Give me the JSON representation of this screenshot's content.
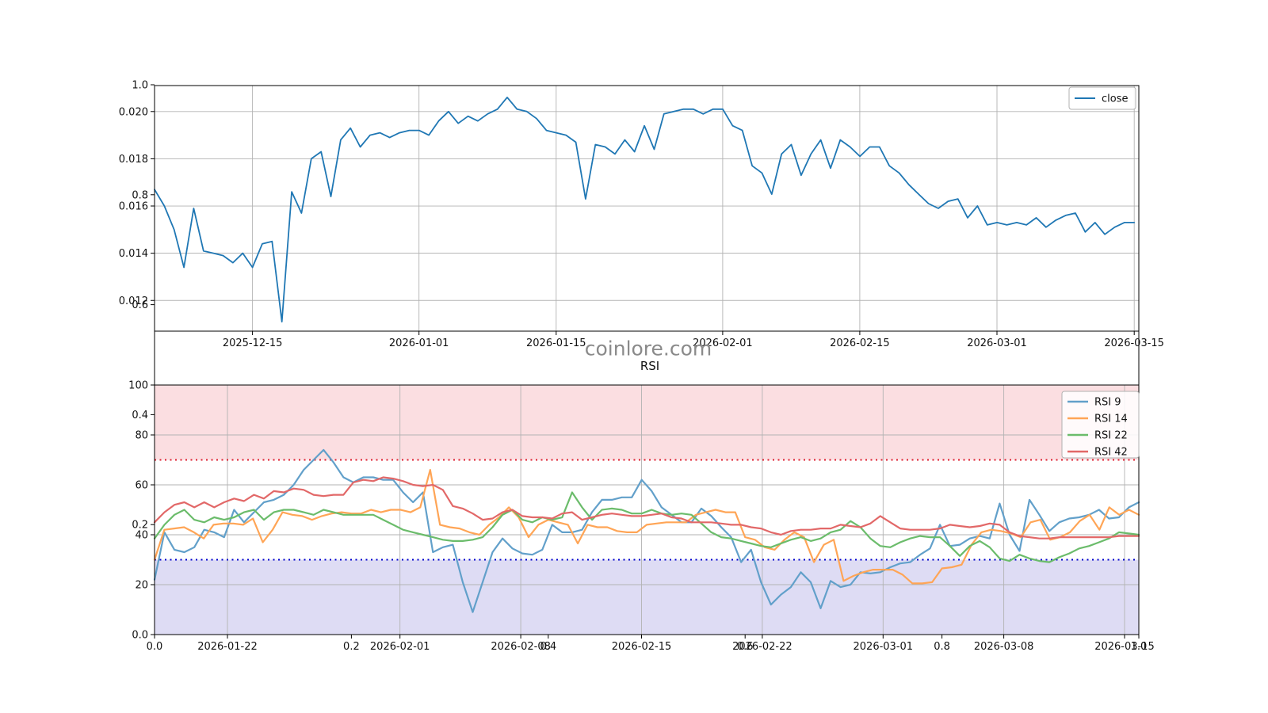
{
  "watermark": "coinlore.com",
  "price_chart": {
    "legend": [
      "close"
    ],
    "y_tick_labels": [
      "0.020",
      "0.018",
      "0.016",
      "0.014",
      "0.012"
    ],
    "y_tick_values": [
      0.02,
      0.018,
      0.016,
      0.014,
      0.012
    ],
    "x_tick_labels": [
      "2025-12-15",
      "2026-01-01",
      "2026-01-15",
      "2026-02-01",
      "2026-02-15",
      "2026-03-01",
      "2026-03-15"
    ]
  },
  "rsi_chart": {
    "title": "RSI",
    "legend": [
      "RSI 9",
      "RSI 14",
      "RSI 22",
      "RSI 42"
    ],
    "y_tick_labels": [
      "100",
      "80",
      "60",
      "40",
      "20"
    ],
    "y_tick_values": [
      100,
      80,
      60,
      40,
      20
    ],
    "x_tick_labels": [
      "2026-01-22",
      "2026-02-01",
      "2026-02-08",
      "2026-02-15",
      "2026-02-22",
      "2026-03-01",
      "2026-03-08",
      "2026-03-15"
    ],
    "overbought_level": 70,
    "oversold_level": 30
  },
  "overlay_axis": {
    "x_tick_labels": [
      "0.0",
      "0.2",
      "0.4",
      "0.6",
      "0.8",
      "1.0"
    ],
    "y_tick_labels": [
      "1.0",
      "0.8",
      "0.6",
      "0.4",
      "0.2",
      "0.0"
    ]
  },
  "colors": {
    "close": "#1f77b4",
    "rsi9": "#62a0ca",
    "rsi14": "#ffa556",
    "rsi22": "#6bbc6b",
    "rsi42": "#e26868",
    "overbought_band": "#fbdee1",
    "oversold_band": "#dedcf4",
    "overbought_line": "#dc1c2c",
    "oversold_line": "#0000cd",
    "grid": "#b3b3b3",
    "watermark_gray": "#8a8a8a"
  },
  "chart_data": [
    {
      "type": "line",
      "title": "",
      "x_start": "2025-12-05",
      "x_end": "2026-03-15",
      "x_freq": "daily",
      "ylim": [
        0.0107,
        0.0211
      ],
      "grid": true,
      "legend_position": "upper right",
      "series": [
        {
          "name": "close",
          "values": [
            0.0167,
            0.016,
            0.015,
            0.0134,
            0.0159,
            0.0141,
            0.014,
            0.0139,
            0.0136,
            0.014,
            0.0134,
            0.0144,
            0.0145,
            0.0111,
            0.0166,
            0.0157,
            0.018,
            0.0183,
            0.0164,
            0.0188,
            0.0193,
            0.0185,
            0.019,
            0.0191,
            0.0189,
            0.0191,
            0.0192,
            0.0192,
            0.019,
            0.0196,
            0.02,
            0.0195,
            0.0198,
            0.0196,
            0.0199,
            0.0201,
            0.0206,
            0.0201,
            0.02,
            0.0197,
            0.0192,
            0.0191,
            0.019,
            0.0187,
            0.0163,
            0.0186,
            0.0185,
            0.0182,
            0.0188,
            0.0183,
            0.0194,
            0.0184,
            0.0199,
            0.02,
            0.0201,
            0.0201,
            0.0199,
            0.0201,
            0.0201,
            0.0194,
            0.0192,
            0.0177,
            0.0174,
            0.0165,
            0.0182,
            0.0186,
            0.0173,
            0.0182,
            0.0188,
            0.0176,
            0.0188,
            0.0185,
            0.0181,
            0.0185,
            0.0185,
            0.0177,
            0.0174,
            0.0169,
            0.0165,
            0.0161,
            0.0159,
            0.0162,
            0.0163,
            0.0155,
            0.016,
            0.0152,
            0.0153,
            0.0152,
            0.0153,
            0.0152,
            0.0155,
            0.0151,
            0.0154,
            0.0156,
            0.0157,
            0.0149,
            0.0153,
            0.0148,
            0.0151,
            0.0153,
            0.0153
          ]
        }
      ]
    },
    {
      "type": "line",
      "title": "RSI",
      "x_start": "2026-01-18",
      "x_end": "2026-03-15",
      "ylim": [
        0,
        100
      ],
      "grid": true,
      "legend_position": "upper right",
      "bands": [
        {
          "range": [
            70,
            100
          ],
          "color": "#fbdee1"
        },
        {
          "range": [
            0,
            30
          ],
          "color": "#dedcf4"
        }
      ],
      "threshold_lines": [
        70,
        30
      ],
      "series": [
        {
          "name": "RSI 9",
          "values": [
            22,
            41,
            34,
            33,
            35,
            42,
            41,
            39,
            50,
            45,
            49,
            53,
            54,
            56,
            60,
            66,
            70,
            74,
            69,
            63,
            61,
            63,
            63,
            62,
            62,
            57,
            53,
            57,
            33,
            35,
            36,
            21,
            9,
            21,
            33,
            38.5,
            34.5,
            32.5,
            32,
            34,
            44,
            41,
            41,
            42,
            49,
            54,
            54,
            55,
            55,
            62,
            57.5,
            51,
            48,
            45,
            45,
            50.5,
            47.5,
            43,
            39,
            29,
            34,
            21,
            12,
            16,
            19,
            25,
            21,
            10.5,
            21.5,
            19,
            20,
            25,
            24.5,
            25,
            27,
            28.5,
            29,
            32,
            34.5,
            44,
            35.5,
            36,
            38.5,
            39.5,
            38.5,
            52.5,
            40,
            33.5,
            54,
            48,
            41.5,
            45,
            46.5,
            47,
            48,
            50,
            46.5,
            47,
            51,
            53
          ]
        },
        {
          "name": "RSI 14",
          "values": [
            30,
            42,
            42.5,
            43,
            41,
            38.5,
            44,
            44.5,
            44.5,
            44,
            46.5,
            37,
            42,
            49,
            48,
            47.5,
            46,
            47.5,
            48.5,
            49,
            48.5,
            48.5,
            50,
            49,
            50,
            50,
            49,
            51,
            66,
            44,
            43,
            42.5,
            41,
            40,
            44,
            47,
            51,
            47,
            39,
            44,
            46,
            45,
            44,
            36.5,
            44,
            43,
            43,
            41.5,
            41,
            41,
            44,
            44.5,
            45,
            45,
            45,
            48,
            49,
            50,
            49,
            49,
            39,
            38,
            35,
            34,
            38,
            41,
            39,
            29,
            36,
            38,
            21.5,
            23.5,
            25,
            26,
            26,
            26,
            24,
            20.5,
            20.5,
            21,
            26.5,
            27,
            28,
            36,
            41,
            42,
            41.5,
            40.5,
            39,
            45,
            46,
            38,
            39,
            41,
            45.5,
            48,
            42,
            51,
            48,
            50,
            48
          ]
        },
        {
          "name": "RSI 22",
          "values": [
            38.5,
            44,
            48,
            50,
            46,
            45,
            47,
            46,
            47,
            49,
            50,
            46,
            49,
            50,
            50,
            49,
            48,
            50,
            49,
            48,
            48,
            48,
            48,
            46,
            44,
            42,
            41,
            40,
            39,
            38,
            37.5,
            37.5,
            38,
            39,
            43,
            48,
            50,
            46,
            45,
            47,
            46,
            47,
            57,
            51,
            46,
            50,
            50.5,
            50,
            48.5,
            48.5,
            50,
            48.5,
            48,
            48.5,
            48,
            44.5,
            41,
            39,
            38.5,
            37.5,
            36.5,
            35.5,
            35,
            36.5,
            38,
            39,
            37.5,
            38.5,
            41,
            42,
            45.5,
            43,
            38.5,
            35.5,
            35,
            37,
            38.5,
            39.5,
            39,
            39,
            35.5,
            31.5,
            35.5,
            37.5,
            35,
            30.5,
            29.5,
            32,
            30.5,
            29.5,
            29,
            31,
            32.5,
            34.5,
            35.5,
            37,
            38.5,
            41,
            40.5,
            40
          ]
        },
        {
          "name": "RSI 42",
          "values": [
            45,
            49,
            52,
            53,
            51,
            53,
            51,
            53,
            54.5,
            53.5,
            56,
            54.5,
            57.5,
            57,
            58.5,
            58,
            56,
            55.5,
            56,
            56,
            61,
            62,
            61.5,
            63,
            62.5,
            61.5,
            60,
            59.5,
            60,
            58,
            51.5,
            50.5,
            48.5,
            46,
            46.5,
            49,
            50,
            47.5,
            47,
            47,
            46.5,
            48.5,
            49,
            46,
            47,
            48,
            48.5,
            48,
            47.5,
            47.5,
            48,
            48.5,
            47,
            46.5,
            45,
            45,
            45,
            44.5,
            44,
            44,
            43,
            42.5,
            41,
            40,
            41.5,
            42,
            42,
            42.5,
            42.5,
            44,
            43.5,
            43,
            44.5,
            47.5,
            45,
            42.5,
            42,
            42,
            42,
            42.5,
            44,
            43.5,
            43,
            43.5,
            44.5,
            44,
            41,
            39.5,
            39,
            38.5,
            38.5,
            39,
            39,
            39,
            39,
            39,
            39,
            39.5,
            39.5,
            39.5
          ]
        }
      ]
    }
  ]
}
